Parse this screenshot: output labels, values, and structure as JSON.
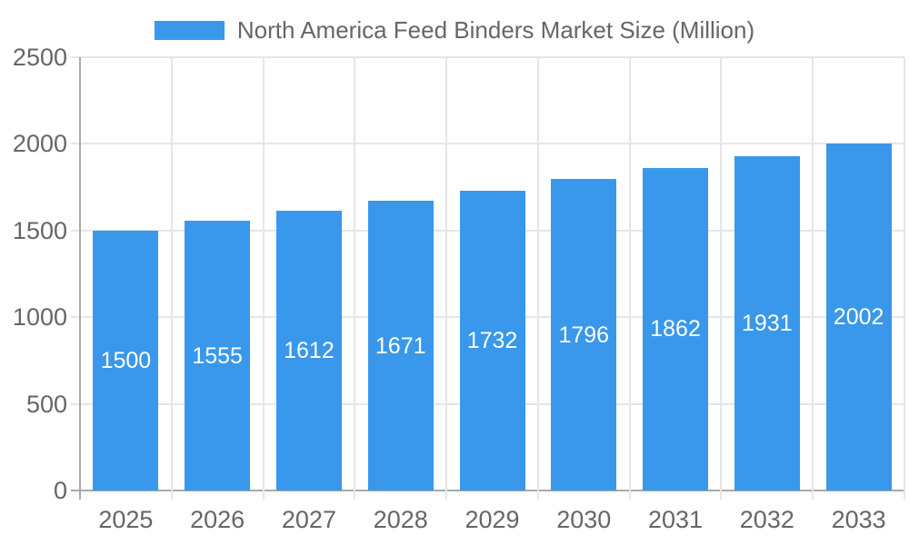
{
  "chart_data": {
    "type": "bar",
    "title": "North America Feed Binders Market Size (Million)",
    "legend": {
      "position": "top",
      "entries": [
        "North America Feed Binders Market Size (Million)"
      ]
    },
    "categories": [
      "2025",
      "2026",
      "2027",
      "2028",
      "2029",
      "2030",
      "2031",
      "2032",
      "2033"
    ],
    "values": [
      1500,
      1555,
      1612,
      1671,
      1732,
      1796,
      1862,
      1931,
      2002
    ],
    "value_labels_position": "inside-center",
    "xlabel": "",
    "ylabel": "",
    "ylim": [
      0,
      2500
    ],
    "ytick_step": 500,
    "yticks": [
      0,
      500,
      1000,
      1500,
      2000,
      2500
    ],
    "grid": true,
    "colors": {
      "bar": "#3998EB",
      "value_label": "#FFFFFF",
      "axis_text": "#666666",
      "gridline": "#E6E6E6",
      "zero_line": "#A9A9A9",
      "background": "#FFFFFF"
    }
  }
}
